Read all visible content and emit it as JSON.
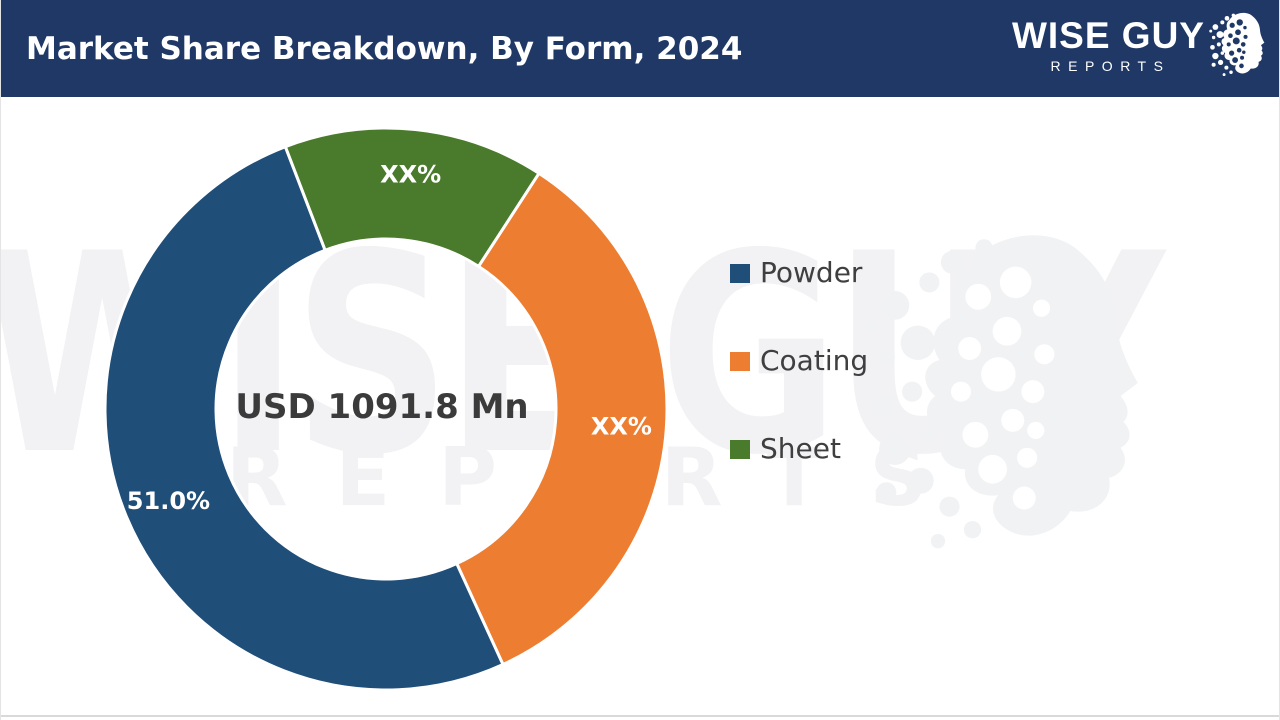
{
  "header": {
    "title": "Market Share Breakdown, By Form, 2024",
    "bg_color": "#1f3866",
    "logo": {
      "line1": "WISE GUY",
      "line2": "REPORTS"
    }
  },
  "watermark": {
    "line1": "WISE GUY",
    "line2": "REPORTS"
  },
  "chart_data": {
    "type": "pie",
    "donut": true,
    "title": "Market Share Breakdown, By Form, 2024",
    "center_label": "USD 1091.8 Mn",
    "start_angle_deg": -21,
    "segments": [
      {
        "name": "Sheet",
        "value_pct": 15.0,
        "label": "XX%",
        "color": "#4a7a2b"
      },
      {
        "name": "Coating",
        "value_pct": 34.0,
        "label": "XX%",
        "color": "#ed7d31"
      },
      {
        "name": "Powder",
        "value_pct": 51.0,
        "label": "51.0%",
        "color": "#1f4e79"
      }
    ],
    "legend": {
      "position": "right",
      "items": [
        {
          "label": "Powder",
          "color": "#1f4e79"
        },
        {
          "label": "Coating",
          "color": "#ed7d31"
        },
        {
          "label": "Sheet",
          "color": "#4a7a2b"
        }
      ]
    }
  },
  "colors": {
    "header_bg": "#1f3866",
    "text_dark": "#3b3b3b",
    "watermark": "#f2f2f5",
    "bottom_rule": "#d9d9d9",
    "label_text": "#ffffff"
  }
}
